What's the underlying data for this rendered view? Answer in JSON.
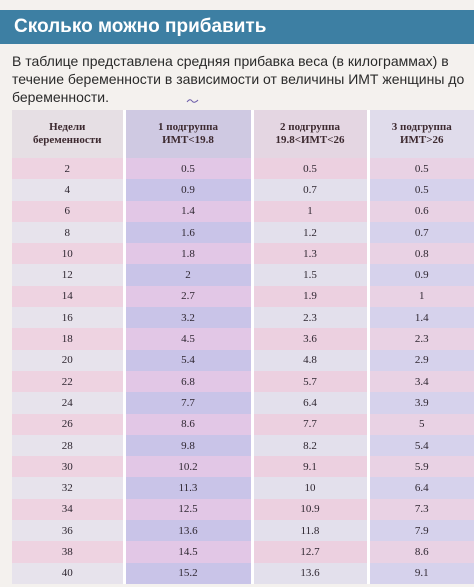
{
  "header": {
    "title": "Сколько можно прибавить"
  },
  "intro": {
    "text": "В таблице представлена средняя прибавка веса (в килограммах) в течение беременности в зависимости от величины ИМТ женщины до беременности."
  },
  "table": {
    "columns": [
      {
        "line1": "Недели",
        "line2": "беременности"
      },
      {
        "line1": "1 подгруппа",
        "line2": "ИМТ<19.8"
      },
      {
        "line1": "2 подгруппа",
        "line2": "19.8<ИМТ<26"
      },
      {
        "line1": "3 подгруппа",
        "line2": "ИМТ>26"
      }
    ],
    "rows": [
      [
        "2",
        "0.5",
        "0.5",
        "0.5"
      ],
      [
        "4",
        "0.9",
        "0.7",
        "0.5"
      ],
      [
        "6",
        "1.4",
        "1",
        "0.6"
      ],
      [
        "8",
        "1.6",
        "1.2",
        "0.7"
      ],
      [
        "10",
        "1.8",
        "1.3",
        "0.8"
      ],
      [
        "12",
        "2",
        "1.5",
        "0.9"
      ],
      [
        "14",
        "2.7",
        "1.9",
        "1"
      ],
      [
        "16",
        "3.2",
        "2.3",
        "1.4"
      ],
      [
        "18",
        "4.5",
        "3.6",
        "2.3"
      ],
      [
        "20",
        "5.4",
        "4.8",
        "2.9"
      ],
      [
        "22",
        "6.8",
        "5.7",
        "3.4"
      ],
      [
        "24",
        "7.7",
        "6.4",
        "3.9"
      ],
      [
        "26",
        "8.6",
        "7.7",
        "5"
      ],
      [
        "28",
        "9.8",
        "8.2",
        "5.4"
      ],
      [
        "30",
        "10.2",
        "9.1",
        "5.9"
      ],
      [
        "32",
        "11.3",
        "10",
        "6.4"
      ],
      [
        "34",
        "12.5",
        "10.9",
        "7.3"
      ],
      [
        "36",
        "13.6",
        "11.8",
        "7.9"
      ],
      [
        "38",
        "14.5",
        "12.7",
        "8.6"
      ],
      [
        "40",
        "15.2",
        "13.6",
        "9.1"
      ]
    ]
  },
  "colors": {
    "banner": "#3d7fa3",
    "row_pink": "#eed3e1",
    "row_lavender": "#c9c4e8",
    "page": "#f4f1ee"
  }
}
